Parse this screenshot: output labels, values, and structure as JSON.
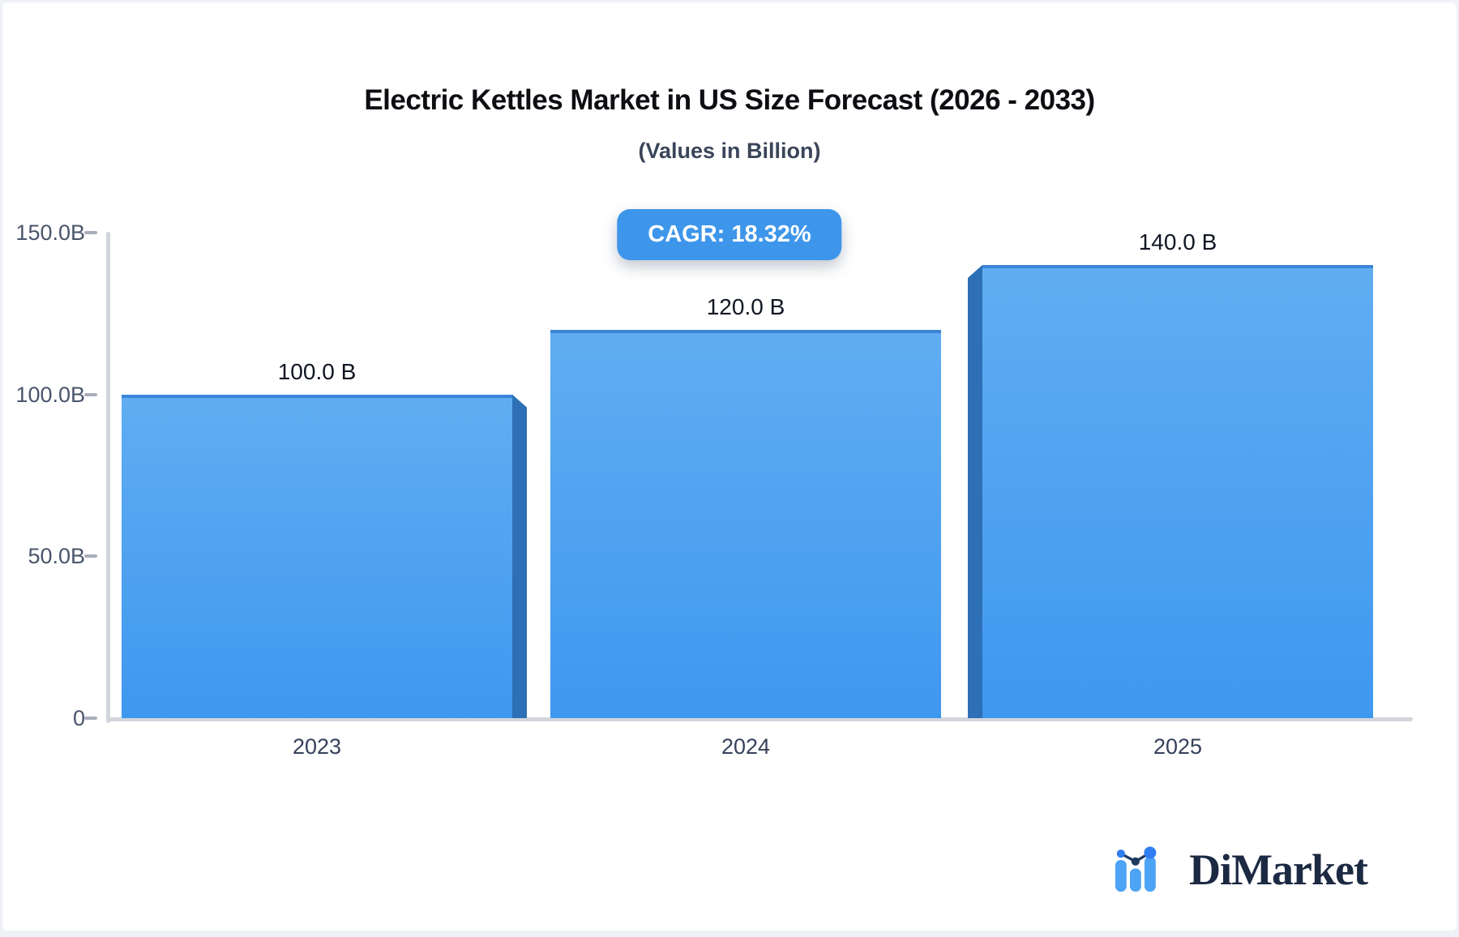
{
  "page": {
    "title": "Electric Kettles Market in US Size Forecast (2026 - 2033)",
    "subtitle": "(Values in Billion)",
    "cagr_badge": "CAGR: 18.32%"
  },
  "branding": {
    "logo_text": "DiMarket",
    "logo_icon": "bar-chart-trendline-icon"
  },
  "colors": {
    "accent": "#3e96ea",
    "bar_grad_top": "#60adf2",
    "bar_grad_bottom": "#3f98ef",
    "bar_side": "#2e70b5",
    "bar_edge": "#3a85d8",
    "axis": "#d2d6dc",
    "tick": "#a9aeb9",
    "title_text": "#0c0e12",
    "subtitle_text": "#3a455a",
    "label_text": "#101623",
    "axis_text": "#49556b",
    "category_text": "#35415a",
    "logo_navy": "#1c2942",
    "logo_blue": "#4da3f5",
    "logo_dot_blue": "#2f7df0",
    "logo_line_navy": "#1e3a5f"
  },
  "chart_data": {
    "type": "bar",
    "title": "Electric Kettles Market in US Size Forecast (2026 - 2033)",
    "subtitle": "(Values in Billion)",
    "annotation": "CAGR: 18.32%",
    "cagr_percent": 18.32,
    "categories": [
      "2023",
      "2024",
      "2025"
    ],
    "values": [
      100.0,
      120.0,
      140.0
    ],
    "value_labels": [
      "100.0 B",
      "120.0 B",
      "140.0 B"
    ],
    "unit": "Billion",
    "xlabel": "",
    "ylabel": "",
    "ylim": [
      0,
      150
    ],
    "y_ticks": [
      {
        "value": 0,
        "label": "0"
      },
      {
        "value": 50,
        "label": "50.0B"
      },
      {
        "value": 100,
        "label": "100.0B"
      },
      {
        "value": 150,
        "label": "150.0B"
      }
    ],
    "grid": "off",
    "legend": "none",
    "bar_style": "3d-beveled-blue-gradient"
  }
}
